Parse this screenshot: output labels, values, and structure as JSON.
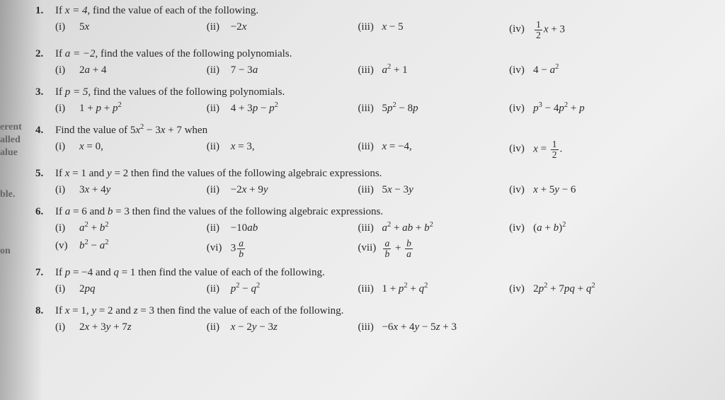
{
  "margin": {
    "m1": "erent",
    "m2": "alled",
    "m3": "alue",
    "m4": "ble.",
    "m5": "on"
  },
  "questions": [
    {
      "num": "1.",
      "stem_before": "If ",
      "stem_var": "x = 4",
      "stem_after": ", find the value of each of the following.",
      "parts": [
        {
          "label": "(i)",
          "html": "5<i>x</i>"
        },
        {
          "label": "(ii)",
          "html": "−2<i>x</i>"
        },
        {
          "label": "(iii)",
          "html": "<i>x</i> − 5"
        },
        {
          "label": "(iv)",
          "html": "<span class='frac'><span class='num'>1</span><span class='den'>2</span></span><i>x</i> + 3"
        }
      ]
    },
    {
      "num": "2.",
      "stem_before": "If ",
      "stem_var": "a = −2",
      "stem_after": ", find the values of the following polynomials.",
      "parts": [
        {
          "label": "(i)",
          "html": "2<i>a</i> + 4"
        },
        {
          "label": "(ii)",
          "html": "7 − 3<i>a</i>"
        },
        {
          "label": "(iii)",
          "html": "<i>a</i><sup>2</sup> + 1"
        },
        {
          "label": "(iv)",
          "html": "4 − <i>a</i><sup>2</sup>"
        }
      ]
    },
    {
      "num": "3.",
      "stem_before": "If ",
      "stem_var": "p = 5",
      "stem_after": ", find the values of the following polynomials.",
      "parts": [
        {
          "label": "(i)",
          "html": "1 + <i>p</i> + <i>p</i><sup>2</sup>"
        },
        {
          "label": "(ii)",
          "html": "4 + 3<i>p</i> − <i>p</i><sup>2</sup>"
        },
        {
          "label": "(iii)",
          "html": "5<i>p</i><sup>2</sup> − 8<i>p</i>"
        },
        {
          "label": "(iv)",
          "html": "<i>p</i><sup>3</sup> − 4<i>p</i><sup>2</sup> + <i>p</i>"
        }
      ]
    },
    {
      "num": "4.",
      "stem_before": "Find the value of ",
      "stem_var": "5x² − 3x + 7",
      "stem_var_html": "5<i>x</i><sup>2</sup> − 3<i>x</i> + 7",
      "stem_after": " when",
      "parts": [
        {
          "label": "(i)",
          "html": "<i>x</i> = 0,"
        },
        {
          "label": "(ii)",
          "html": "<i>x</i> = 3,"
        },
        {
          "label": "(iii)",
          "html": "<i>x</i> = −4,"
        },
        {
          "label": "(iv)",
          "html": "<i>x</i> = <span class='frac'><span class='num'>1</span><span class='den'>2</span></span>."
        }
      ]
    },
    {
      "num": "5.",
      "stem_before": "If ",
      "stem_var": "x = 1 and y = 2",
      "stem_var_html": "<i>x</i> = 1 and <i>y</i> = 2",
      "stem_after": " then find the values of the following algebraic expressions.",
      "parts": [
        {
          "label": "(i)",
          "html": "3<i>x</i> + 4<i>y</i>"
        },
        {
          "label": "(ii)",
          "html": "−2<i>x</i> + 9<i>y</i>"
        },
        {
          "label": "(iii)",
          "html": "5<i>x</i> − 3<i>y</i>"
        },
        {
          "label": "(iv)",
          "html": "<i>x</i> + 5<i>y</i> − 6"
        }
      ]
    },
    {
      "num": "6.",
      "stem_before": "If ",
      "stem_var": "a = 6 and b = 3",
      "stem_var_html": "<i>a</i> = 6 and <i>b</i> = 3",
      "stem_after": " then find the values of the following algebraic expressions.",
      "parts": [
        {
          "label": "(i)",
          "html": "<i>a</i><sup>2</sup> + <i>b</i><sup>2</sup>"
        },
        {
          "label": "(ii)",
          "html": "−10<i>ab</i>"
        },
        {
          "label": "(iii)",
          "html": "<i>a</i><sup>2</sup> + <i>ab</i> + <i>b</i><sup>2</sup>"
        },
        {
          "label": "(iv)",
          "html": "(<i>a</i> + <i>b</i>)<sup>2</sup>"
        },
        {
          "label": "(v)",
          "html": "<i>b</i><sup>2</sup> − <i>a</i><sup>2</sup>"
        },
        {
          "label": "(vi)",
          "html": "3<span class='frac'><span class='num'><i>a</i></span><span class='den'><i>b</i></span></span>"
        },
        {
          "label": "(vii)",
          "html": "<span class='frac'><span class='num'><i>a</i></span><span class='den'><i>b</i></span></span> + <span class='frac'><span class='num'><i>b</i></span><span class='den'><i>a</i></span></span>"
        }
      ]
    },
    {
      "num": "7.",
      "stem_before": "If ",
      "stem_var": "p = −4 and q = 1",
      "stem_var_html": "<i>p</i> = −4 and <i>q</i> = 1",
      "stem_after": " then find the value of each of the following.",
      "parts": [
        {
          "label": "(i)",
          "html": "2<i>pq</i>"
        },
        {
          "label": "(ii)",
          "html": "<i>p</i><sup>2</sup> − <i>q</i><sup>2</sup>"
        },
        {
          "label": "(iii)",
          "html": "1 + <i>p</i><sup>2</sup> + <i>q</i><sup>2</sup>"
        },
        {
          "label": "(iv)",
          "html": "2<i>p</i><sup>2</sup> + 7<i>pq</i> + <i>q</i><sup>2</sup>"
        }
      ]
    },
    {
      "num": "8.",
      "stem_before": "If ",
      "stem_var": "x = 1, y = 2 and z = 3",
      "stem_var_html": "<i>x</i> = 1, <i>y</i> = 2 and <i>z</i> = 3",
      "stem_after": " then find the value of each of the following.",
      "parts": [
        {
          "label": "(i)",
          "html": "2<i>x</i> + 3<i>y</i> + 7<i>z</i>"
        },
        {
          "label": "(ii)",
          "html": "<i>x</i> − 2<i>y</i> − 3<i>z</i>"
        },
        {
          "label": "(iii)",
          "html": "−6<i>x</i> + 4<i>y</i> − 5<i>z</i> + 3"
        }
      ]
    }
  ]
}
